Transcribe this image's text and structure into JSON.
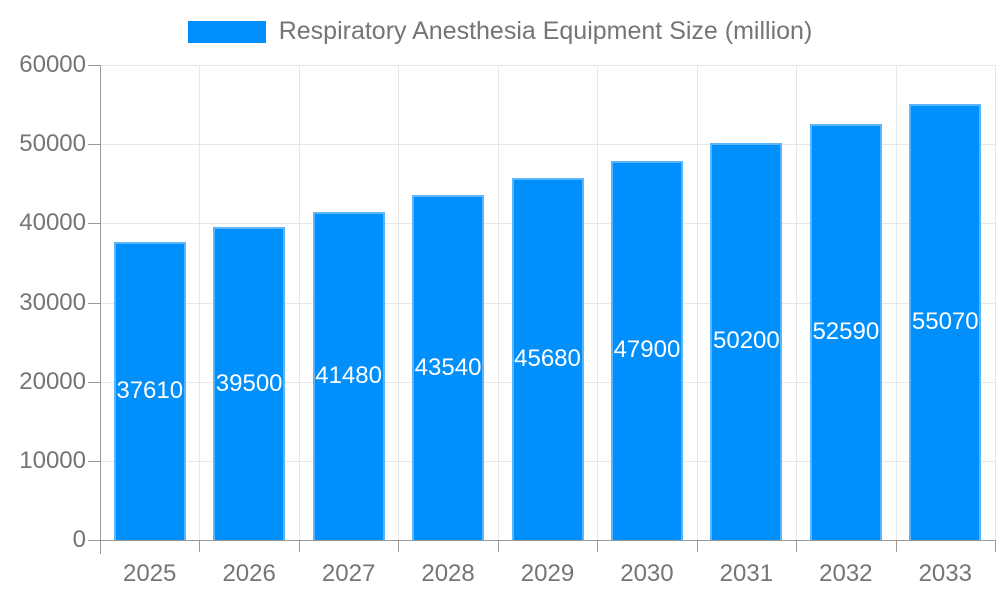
{
  "chart_data": {
    "type": "bar",
    "title": "Respiratory Anesthesia Equipment Size (million)",
    "categories": [
      "2025",
      "2026",
      "2027",
      "2028",
      "2029",
      "2030",
      "2031",
      "2032",
      "2033"
    ],
    "values": [
      37610,
      39500,
      41480,
      43540,
      45680,
      47900,
      50200,
      52590,
      55070
    ],
    "bar_value_labels": [
      "37610",
      "39500",
      "41480",
      "43540",
      "45680",
      "47900",
      "50200",
      "52590",
      "55070"
    ],
    "xlabel": "",
    "ylabel": "",
    "ylim": [
      0,
      60000
    ],
    "ytick_step": 10000,
    "ytick_labels": [
      "0",
      "10000",
      "20000",
      "30000",
      "40000",
      "50000",
      "60000"
    ],
    "grid": true,
    "legend": {
      "position": "top",
      "label": "Respiratory Anesthesia Equipment Size (million)",
      "swatch_color": "#008FFB"
    },
    "colors": {
      "bar_fill": "#008FFB",
      "bar_value_text": "#ffffff",
      "axis_text": "#757575",
      "grid_line": "#e7e7e7",
      "axis_line": "#999999"
    }
  }
}
